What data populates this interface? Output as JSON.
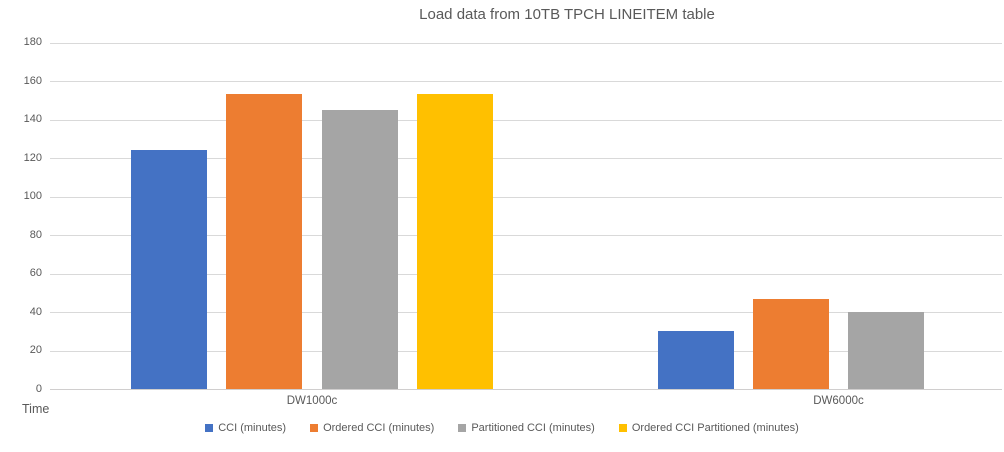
{
  "chart": {
    "title": "Load data from 10TB TPCH LINEITEM table",
    "axis_title": "Time"
  },
  "chart_data": {
    "type": "bar",
    "title": "Load data from 10TB TPCH LINEITEM table",
    "categories": [
      "DW1000c",
      "DW6000c"
    ],
    "series": [
      {
        "name": "CCI (minutes)",
        "color": "#4472C4",
        "values": [
          124,
          30
        ]
      },
      {
        "name": "Ordered CCI (minutes)",
        "color": "#ED7D31",
        "values": [
          153,
          47
        ]
      },
      {
        "name": "Partitioned CCI (minutes)",
        "color": "#A5A5A5",
        "values": [
          145,
          40
        ]
      },
      {
        "name": "Ordered CCI Partitioned (minutes)",
        "color": "#FFC000",
        "values": [
          153,
          null
        ]
      }
    ],
    "xlabel": "",
    "ylabel": "Time",
    "ylim": [
      0,
      180
    ],
    "yticks": [
      0,
      20,
      40,
      60,
      80,
      100,
      120,
      140,
      160,
      180
    ],
    "grid": true,
    "legend_position": "bottom",
    "gridline_color": "#D9D9D9",
    "text_color": "#595959"
  }
}
